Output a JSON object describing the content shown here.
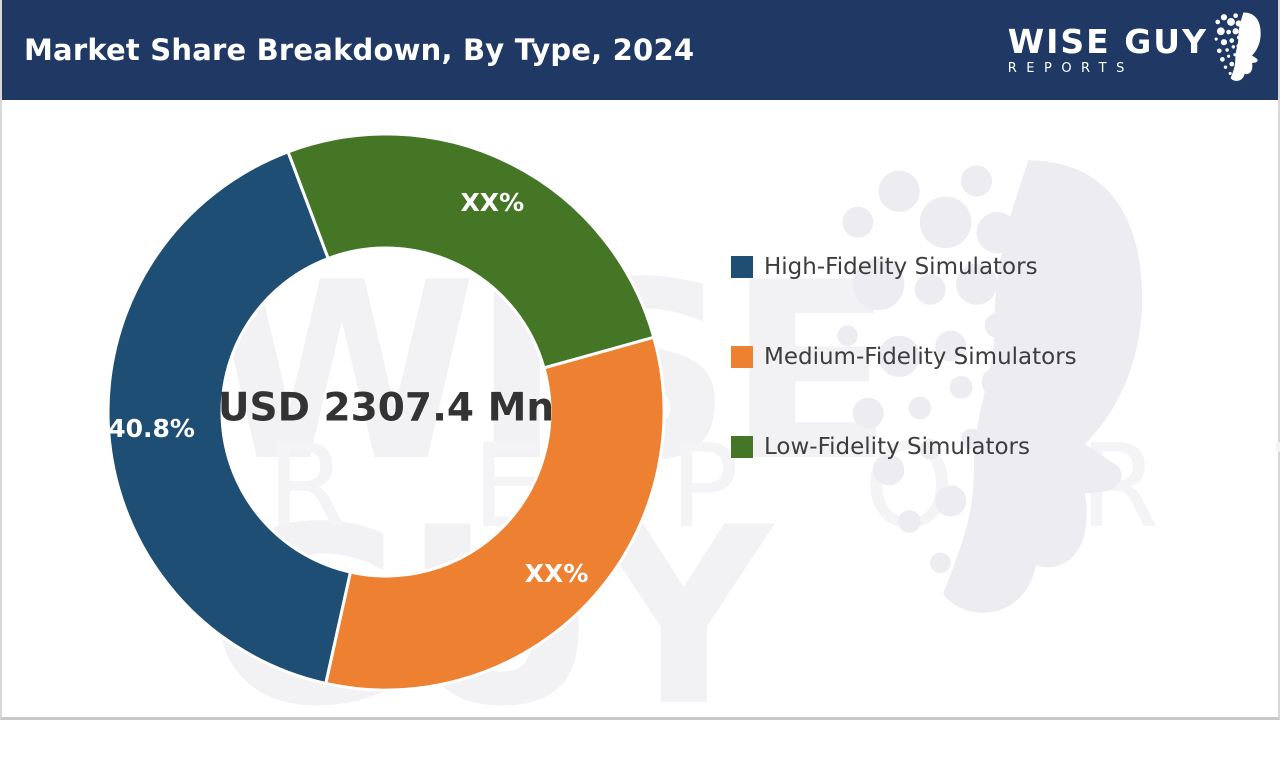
{
  "header": {
    "title": "Market Share Breakdown, By Type, 2024",
    "logo": {
      "line1": "WISE GUY",
      "line2": "REPORTS"
    }
  },
  "watermark": {
    "line1": "WISE GUY",
    "line2": "REPORTS"
  },
  "chart_data": {
    "type": "donut",
    "title": "Market Share Breakdown, By Type, 2024",
    "center_label": "USD 2307.4 Mn",
    "start_angle_deg": 192.5,
    "draw_order": [
      0,
      2,
      1
    ],
    "legend_position": "right",
    "segments": [
      {
        "name": "High-Fidelity Simulators",
        "value": 40.8,
        "label": "40.8%",
        "color": "#1F4E74"
      },
      {
        "name": "Medium-Fidelity Simulators",
        "value": 32.8,
        "label": "XX%",
        "color": "#EE8032"
      },
      {
        "name": "Low-Fidelity Simulators",
        "value": 26.4,
        "label": "XX%",
        "color": "#447626"
      }
    ]
  },
  "colors": {
    "header_bg": "#1F3864",
    "center_text": "#333333",
    "watermark": "#f2f2f4"
  }
}
